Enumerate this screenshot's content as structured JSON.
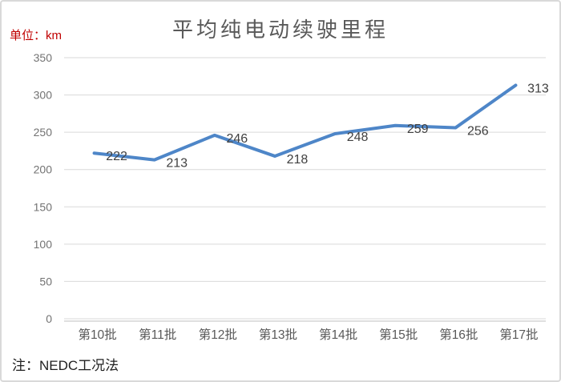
{
  "page": {
    "title": "平均纯电动续驶里程",
    "unit_label": "单位：km",
    "note": "注：NEDC工况法"
  },
  "colors": {
    "line": "#4E86C8",
    "grid": "#D9D9D9",
    "axis": "#BFBFBF",
    "title": "#595959",
    "unit_label": "#C00000",
    "y_tick": "#737373",
    "x_tick": "#595959",
    "data_label": "#404040",
    "note": "#1F1F1F",
    "border": "#D9D9D9",
    "background": "#FFFFFF"
  },
  "chart_data": {
    "type": "line",
    "title": "平均纯电动续驶里程",
    "unit_label": "单位：km",
    "note": "注：NEDC工况法",
    "categories": [
      "第10批",
      "第11批",
      "第12批",
      "第13批",
      "第14批",
      "第15批",
      "第16批",
      "第17批"
    ],
    "series": [
      {
        "name": "平均纯电动续驶里程",
        "values": [
          222,
          213,
          246,
          218,
          248,
          259,
          256,
          313
        ]
      }
    ],
    "ylim": [
      0,
      350
    ],
    "yticks": [
      0,
      50,
      100,
      150,
      200,
      250,
      300,
      350
    ],
    "xlabel": "",
    "ylabel": "单位：km",
    "grid": "horizontal",
    "legend": "none",
    "data_labels": true
  }
}
